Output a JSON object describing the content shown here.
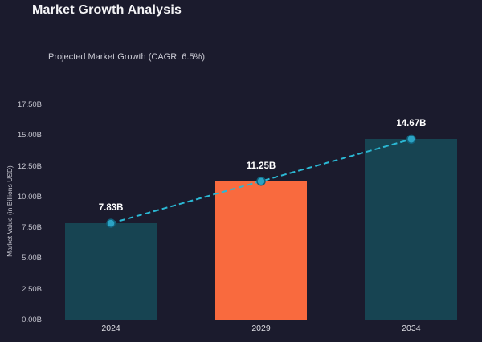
{
  "page": {
    "title": "Market Growth Analysis",
    "subtitle": "Projected Market Growth (CAGR: 6.5%)"
  },
  "chart_data": {
    "type": "bar",
    "title": "Market Growth Analysis",
    "subtitle": "Projected Market Growth (CAGR: 6.5%)",
    "xlabel": "",
    "ylabel": "Market Value (in Billions USD)",
    "categories": [
      "2024",
      "2029",
      "2034"
    ],
    "values": [
      7.83,
      11.25,
      14.67
    ],
    "value_labels": [
      "7.83B",
      "11.25B",
      "14.67B"
    ],
    "ylim": [
      0,
      17.5
    ],
    "yticks": [
      {
        "value": 0,
        "label": "0.00B"
      },
      {
        "value": 2.5,
        "label": "2.50B"
      },
      {
        "value": 5,
        "label": "5.00B"
      },
      {
        "value": 7.5,
        "label": "7.50B"
      },
      {
        "value": 10,
        "label": "10.00B"
      },
      {
        "value": 12.5,
        "label": "12.50B"
      },
      {
        "value": 15,
        "label": "15.00B"
      },
      {
        "value": 17.5,
        "label": "17.50B"
      }
    ],
    "grid": false,
    "legend": false,
    "trend_line_style": "dashed",
    "colors": {
      "background": "#1b1b2d",
      "bar_colors": [
        "#174452",
        "#f96a3e",
        "#174452"
      ],
      "trend_line": "#2bb8d4",
      "marker_fill": "#2ba3c4",
      "marker_stroke": "#11607a",
      "title_text": "#f4f4f6",
      "axis_text": "#c4c4ce"
    }
  }
}
